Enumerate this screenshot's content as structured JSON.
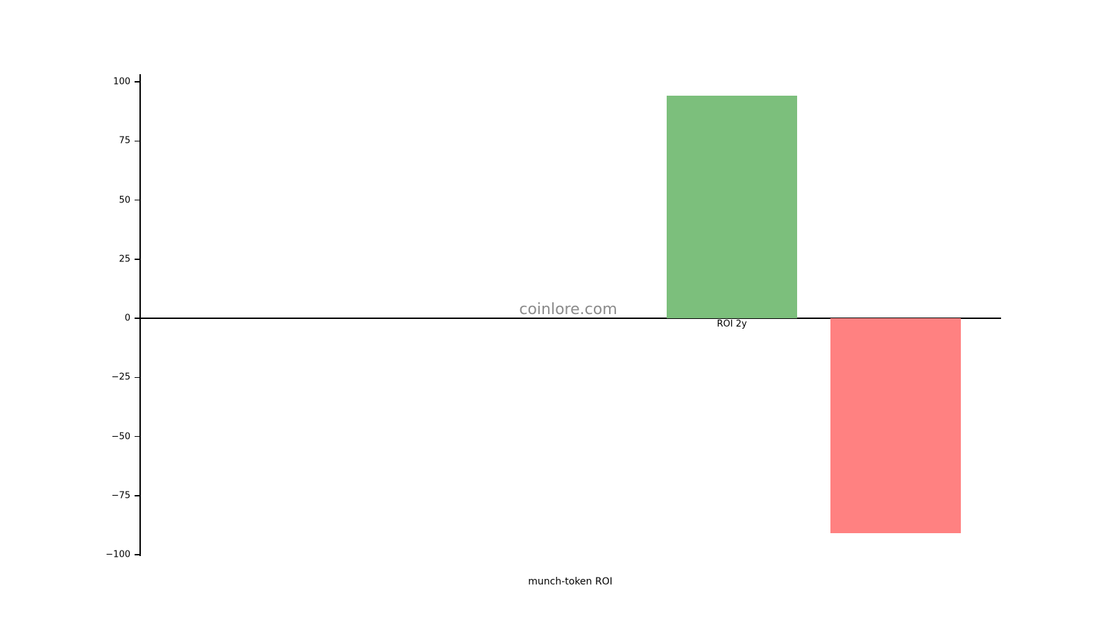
{
  "watermark": {
    "text": "coinlore.com",
    "color": "#7f7f7f"
  },
  "chart_data": {
    "type": "bar",
    "title": "",
    "xlabel": "munch-token ROI",
    "ylabel": "",
    "categories": [
      "ROI 2y",
      ""
    ],
    "values": [
      94,
      -91
    ],
    "bar_colors": [
      "#7cbf7c",
      "#ff8181"
    ],
    "yticks": [
      {
        "value": 100,
        "label": "100"
      },
      {
        "value": 75,
        "label": "75"
      },
      {
        "value": 50,
        "label": "50"
      },
      {
        "value": 25,
        "label": "25"
      },
      {
        "value": 0,
        "label": "0"
      },
      {
        "value": -25,
        "label": "−25"
      },
      {
        "value": -50,
        "label": "−50"
      },
      {
        "value": -75,
        "label": "−75"
      },
      {
        "value": -100,
        "label": "−100"
      }
    ],
    "ylim": [
      -101,
      103.5
    ],
    "grid": false,
    "legend_position": "none",
    "axis_color": "#000000",
    "background_color": "#ffffff",
    "zero_baseline": true
  }
}
